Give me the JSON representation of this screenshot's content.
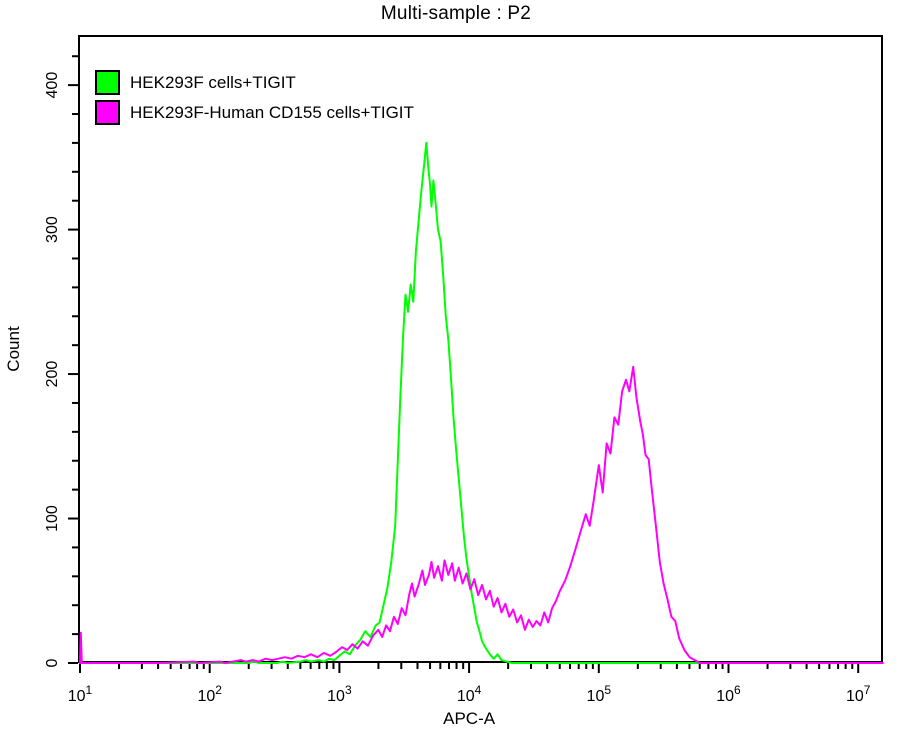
{
  "chart_data": {
    "type": "line",
    "title": "Multi-sample : P2",
    "xlabel": "APC-A",
    "ylabel": "Count",
    "x_scale": "log10",
    "x_range_log10": [
      1,
      7.19
    ],
    "x_major_decades": [
      1,
      2,
      3,
      4,
      5,
      6,
      7
    ],
    "ylim": [
      0,
      434
    ],
    "y_major_ticks": [
      0,
      100,
      200,
      300,
      400
    ],
    "y_minor_step": 20,
    "y_minor_max": 420,
    "grid": false,
    "legend_position": "top-left-inside",
    "axis_color": "#000000",
    "background": "#ffffff",
    "series": [
      {
        "name": "HEK293F cells+TIGIT",
        "color": "#00ff00",
        "peak_log10x": 3.67,
        "peak_count": 360,
        "points": [
          [
            1.0,
            0
          ],
          [
            1.006,
            4
          ],
          [
            1.014,
            0
          ],
          [
            1.5,
            0
          ],
          [
            2.0,
            0
          ],
          [
            2.3,
            0
          ],
          [
            2.34,
            1
          ],
          [
            2.38,
            0
          ],
          [
            2.52,
            0
          ],
          [
            2.56,
            1
          ],
          [
            2.6,
            0
          ],
          [
            2.7,
            1
          ],
          [
            2.74,
            2
          ],
          [
            2.78,
            1
          ],
          [
            2.84,
            2
          ],
          [
            2.88,
            1
          ],
          [
            2.92,
            3
          ],
          [
            2.96,
            2
          ],
          [
            3.0,
            5
          ],
          [
            3.04,
            8
          ],
          [
            3.08,
            6
          ],
          [
            3.12,
            12
          ],
          [
            3.16,
            16
          ],
          [
            3.2,
            22
          ],
          [
            3.24,
            18
          ],
          [
            3.28,
            26
          ],
          [
            3.31,
            28
          ],
          [
            3.34,
            40
          ],
          [
            3.37,
            52
          ],
          [
            3.4,
            70
          ],
          [
            3.43,
            95
          ],
          [
            3.45,
            140
          ],
          [
            3.47,
            185
          ],
          [
            3.49,
            225
          ],
          [
            3.51,
            255
          ],
          [
            3.53,
            243
          ],
          [
            3.55,
            262
          ],
          [
            3.57,
            250
          ],
          [
            3.59,
            285
          ],
          [
            3.61,
            305
          ],
          [
            3.63,
            325
          ],
          [
            3.65,
            342
          ],
          [
            3.67,
            360
          ],
          [
            3.685,
            344
          ],
          [
            3.7,
            330
          ],
          [
            3.71,
            316
          ],
          [
            3.725,
            334
          ],
          [
            3.74,
            320
          ],
          [
            3.76,
            300
          ],
          [
            3.78,
            292
          ],
          [
            3.8,
            268
          ],
          [
            3.82,
            240
          ],
          [
            3.84,
            224
          ],
          [
            3.86,
            198
          ],
          [
            3.88,
            170
          ],
          [
            3.9,
            148
          ],
          [
            3.92,
            128
          ],
          [
            3.94,
            108
          ],
          [
            3.96,
            88
          ],
          [
            3.98,
            72
          ],
          [
            4.0,
            60
          ],
          [
            4.02,
            48
          ],
          [
            4.04,
            38
          ],
          [
            4.06,
            28
          ],
          [
            4.08,
            22
          ],
          [
            4.1,
            15
          ],
          [
            4.13,
            10
          ],
          [
            4.16,
            6
          ],
          [
            4.19,
            3
          ],
          [
            4.22,
            6
          ],
          [
            4.25,
            2
          ],
          [
            4.29,
            1
          ],
          [
            4.33,
            0
          ],
          [
            5.0,
            0
          ],
          [
            6.0,
            0
          ],
          [
            7.19,
            0
          ]
        ]
      },
      {
        "name": "HEK293F-Human CD155 cells+TIGIT",
        "color": "#ff00ff",
        "peak_log10x": 5.265,
        "peak_count": 205,
        "points": [
          [
            1.0,
            0
          ],
          [
            1.006,
            21
          ],
          [
            1.014,
            0
          ],
          [
            1.3,
            0
          ],
          [
            1.6,
            0
          ],
          [
            1.88,
            1
          ],
          [
            1.92,
            0
          ],
          [
            2.08,
            1
          ],
          [
            2.12,
            0
          ],
          [
            2.24,
            2
          ],
          [
            2.28,
            1
          ],
          [
            2.33,
            2
          ],
          [
            2.38,
            1
          ],
          [
            2.43,
            3
          ],
          [
            2.48,
            2
          ],
          [
            2.53,
            3
          ],
          [
            2.58,
            4
          ],
          [
            2.63,
            3
          ],
          [
            2.68,
            5
          ],
          [
            2.73,
            4
          ],
          [
            2.78,
            6
          ],
          [
            2.83,
            4
          ],
          [
            2.88,
            7
          ],
          [
            2.93,
            5
          ],
          [
            2.98,
            8
          ],
          [
            3.02,
            11
          ],
          [
            3.06,
            9
          ],
          [
            3.1,
            13
          ],
          [
            3.14,
            10
          ],
          [
            3.18,
            15
          ],
          [
            3.22,
            12
          ],
          [
            3.26,
            19
          ],
          [
            3.3,
            23
          ],
          [
            3.33,
            18
          ],
          [
            3.36,
            26
          ],
          [
            3.39,
            22
          ],
          [
            3.42,
            32
          ],
          [
            3.45,
            27
          ],
          [
            3.48,
            38
          ],
          [
            3.51,
            33
          ],
          [
            3.54,
            48
          ],
          [
            3.56,
            55
          ],
          [
            3.58,
            46
          ],
          [
            3.61,
            54
          ],
          [
            3.64,
            64
          ],
          [
            3.66,
            54
          ],
          [
            3.69,
            61
          ],
          [
            3.71,
            70
          ],
          [
            3.73,
            59
          ],
          [
            3.76,
            67
          ],
          [
            3.79,
            57
          ],
          [
            3.81,
            71
          ],
          [
            3.84,
            61
          ],
          [
            3.87,
            69
          ],
          [
            3.89,
            57
          ],
          [
            3.92,
            66
          ],
          [
            3.95,
            55
          ],
          [
            3.98,
            62
          ],
          [
            4.01,
            51
          ],
          [
            4.04,
            58
          ],
          [
            4.07,
            47
          ],
          [
            4.1,
            54
          ],
          [
            4.13,
            44
          ],
          [
            4.16,
            50
          ],
          [
            4.19,
            39
          ],
          [
            4.22,
            45
          ],
          [
            4.25,
            35
          ],
          [
            4.28,
            41
          ],
          [
            4.31,
            32
          ],
          [
            4.34,
            37
          ],
          [
            4.37,
            28
          ],
          [
            4.4,
            33
          ],
          [
            4.43,
            23
          ],
          [
            4.46,
            30
          ],
          [
            4.49,
            25
          ],
          [
            4.52,
            29
          ],
          [
            4.55,
            26
          ],
          [
            4.58,
            35
          ],
          [
            4.61,
            28
          ],
          [
            4.64,
            38
          ],
          [
            4.67,
            43
          ],
          [
            4.7,
            50
          ],
          [
            4.74,
            57
          ],
          [
            4.78,
            67
          ],
          [
            4.82,
            79
          ],
          [
            4.86,
            91
          ],
          [
            4.9,
            103
          ],
          [
            4.93,
            95
          ],
          [
            4.96,
            112
          ],
          [
            5.0,
            137
          ],
          [
            5.03,
            118
          ],
          [
            5.06,
            152
          ],
          [
            5.09,
            145
          ],
          [
            5.12,
            170
          ],
          [
            5.15,
            165
          ],
          [
            5.18,
            188
          ],
          [
            5.21,
            196
          ],
          [
            5.235,
            188
          ],
          [
            5.265,
            205
          ],
          [
            5.29,
            184
          ],
          [
            5.32,
            167
          ],
          [
            5.34,
            158
          ],
          [
            5.36,
            144
          ],
          [
            5.385,
            141
          ],
          [
            5.41,
            119
          ],
          [
            5.44,
            95
          ],
          [
            5.47,
            70
          ],
          [
            5.5,
            55
          ],
          [
            5.53,
            44
          ],
          [
            5.56,
            32
          ],
          [
            5.59,
            29
          ],
          [
            5.62,
            17
          ],
          [
            5.66,
            9
          ],
          [
            5.7,
            4
          ],
          [
            5.74,
            2
          ],
          [
            5.78,
            0
          ],
          [
            6.0,
            0
          ],
          [
            6.5,
            0
          ],
          [
            7.19,
            0
          ]
        ]
      }
    ]
  }
}
